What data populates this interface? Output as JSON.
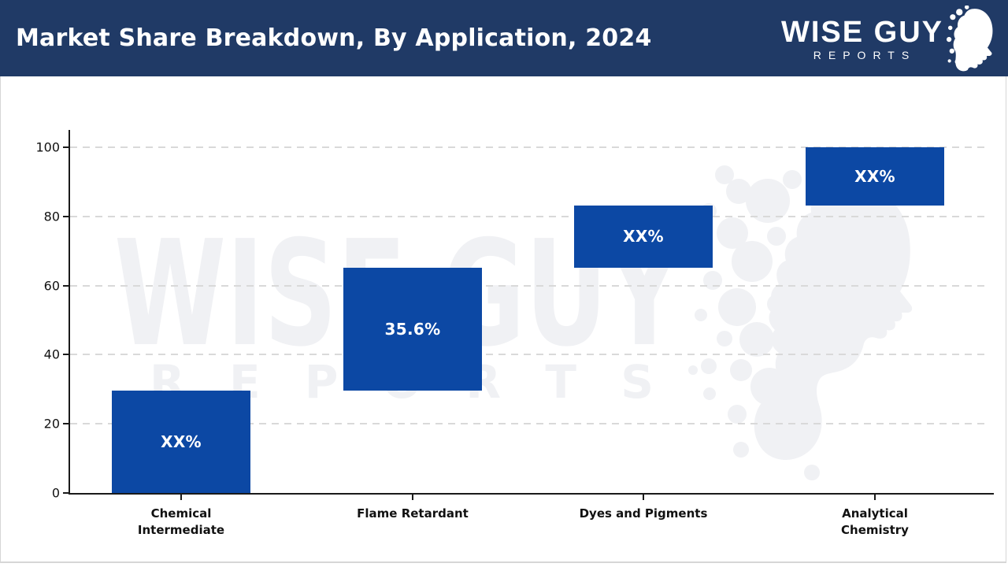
{
  "header": {
    "title": "Market Share Breakdown, By Application, 2024",
    "bg_color": "#203a66",
    "logo": {
      "line1": "WISE GUY",
      "line2": "REPORTS"
    }
  },
  "watermark": {
    "line1": "WISE GUY",
    "line2": "R E P O R T S"
  },
  "chart_data": {
    "type": "bar",
    "subtype": "floating-waterfall",
    "title": "Market Share Breakdown, By Application, 2024",
    "categories": [
      "Chemical\nIntermediate",
      "Flame Retardant",
      "Dyes and Pigments",
      "Analytical\nChemistry"
    ],
    "segments": [
      {
        "category": "Chemical Intermediate",
        "start": 0,
        "end": 29.6,
        "label": "XX%"
      },
      {
        "category": "Flame Retardant",
        "start": 29.6,
        "end": 65.2,
        "label": "35.6%"
      },
      {
        "category": "Dyes and Pigments",
        "start": 65.2,
        "end": 83.2,
        "label": "XX%"
      },
      {
        "category": "Analytical Chemistry",
        "start": 83.2,
        "end": 100,
        "label": "XX%"
      }
    ],
    "yticks": [
      0,
      20,
      40,
      60,
      80,
      100
    ],
    "ylim": [
      0,
      105
    ],
    "xlabel": "",
    "ylabel": "",
    "grid": "horizontal-dashed",
    "legend": "none",
    "bar_color": "#0c48a4",
    "bar_label_color": "#ffffff",
    "axis_color": "#1a1a1a",
    "gridline_color": "#d9d9d9"
  }
}
